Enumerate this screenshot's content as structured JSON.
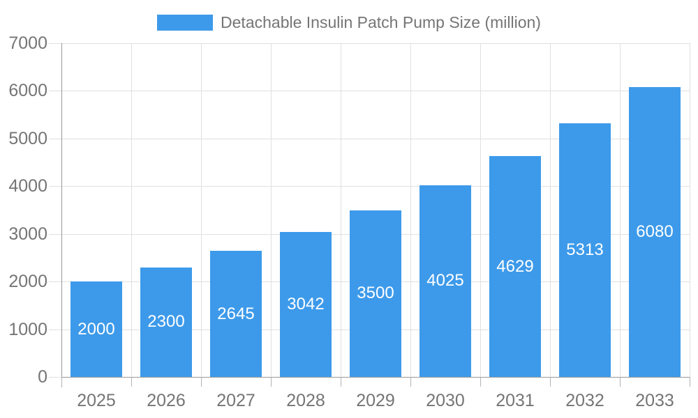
{
  "legend": {
    "label": "Detachable Insulin Patch Pump Size (million)"
  },
  "chart_data": {
    "type": "bar",
    "title": "Detachable Insulin Patch Pump Size (million)",
    "series_name": "Detachable Insulin Patch Pump Size (million)",
    "categories": [
      "2025",
      "2026",
      "2027",
      "2028",
      "2029",
      "2030",
      "2031",
      "2032",
      "2033"
    ],
    "values": [
      2000,
      2300,
      2645,
      3042,
      3500,
      4025,
      4629,
      5313,
      6080
    ],
    "xlabel": "",
    "ylabel": "",
    "ylim": [
      0,
      7000
    ],
    "y_ticks": [
      0,
      1000,
      2000,
      3000,
      4000,
      5000,
      6000,
      7000
    ],
    "grid": true,
    "legend_position": "top",
    "colors": {
      "bar": "#3d9aea",
      "value_label": "#ffffff",
      "axis_text": "#757575",
      "axis_line": "#999999",
      "grid_line": "#e0e0e0",
      "minor_tick": "#b3b3b3"
    }
  }
}
